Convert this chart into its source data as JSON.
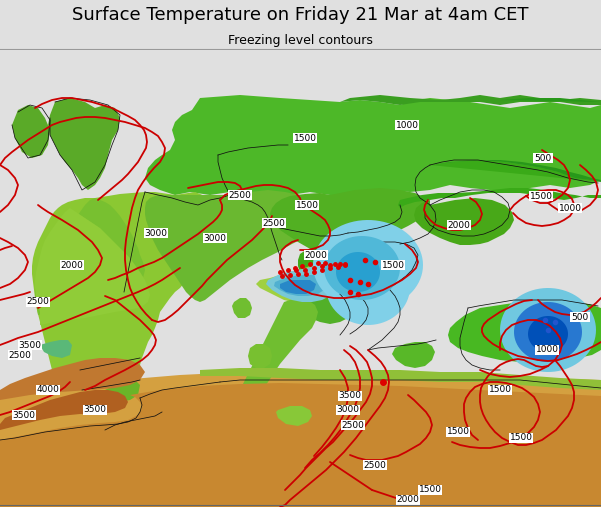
{
  "title": "Surface Temperature on Friday 21 Mar at 4am CET",
  "subtitle": "Freezing level contours",
  "title_fontsize": 13,
  "subtitle_fontsize": 9,
  "fig_width": 6.01,
  "fig_height": 5.07,
  "dpi": 100,
  "header_bg": "#e0e0e0",
  "sea_color": "#c8d4e8",
  "border_color": "#888888",
  "contour_color": "#cc0000",
  "border_line_color": "#111111"
}
